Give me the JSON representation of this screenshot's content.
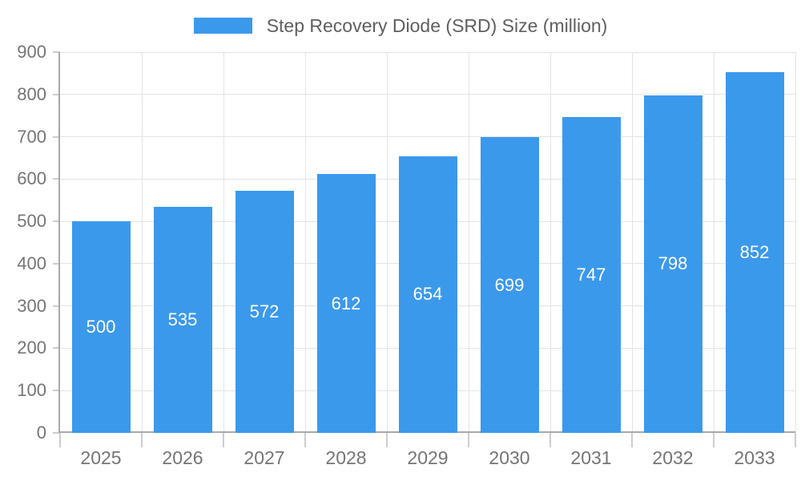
{
  "chart_data": {
    "type": "bar",
    "title": "Step Recovery Diode (SRD) Size (million)",
    "categories": [
      "2025",
      "2026",
      "2027",
      "2028",
      "2029",
      "2030",
      "2031",
      "2032",
      "2033"
    ],
    "series": [
      {
        "name": "Step Recovery Diode (SRD) Size (million)",
        "values": [
          500,
          535,
          572,
          612,
          654,
          699,
          747,
          798,
          852
        ]
      }
    ],
    "value_labels": [
      "500",
      "535",
      "572",
      "612",
      "654",
      "699",
      "747",
      "798",
      "852"
    ],
    "xlabel": "",
    "ylabel": "",
    "ylim": [
      0,
      900
    ],
    "yticks": [
      0,
      100,
      200,
      300,
      400,
      500,
      600,
      700,
      800,
      900
    ],
    "grid": true,
    "legend_position": "top-center",
    "value_label_position": "inside-center",
    "colors": {
      "bar_fill": "#3b99ec",
      "bar_value_text": "#ffffff",
      "gridline": "#e4e4e4",
      "axis_line": "#a9a9a9",
      "tick_mark": "#cdcdcd",
      "axis_text": "#757575",
      "legend_text": "#5f5f5f",
      "background": "#ffffff"
    }
  }
}
